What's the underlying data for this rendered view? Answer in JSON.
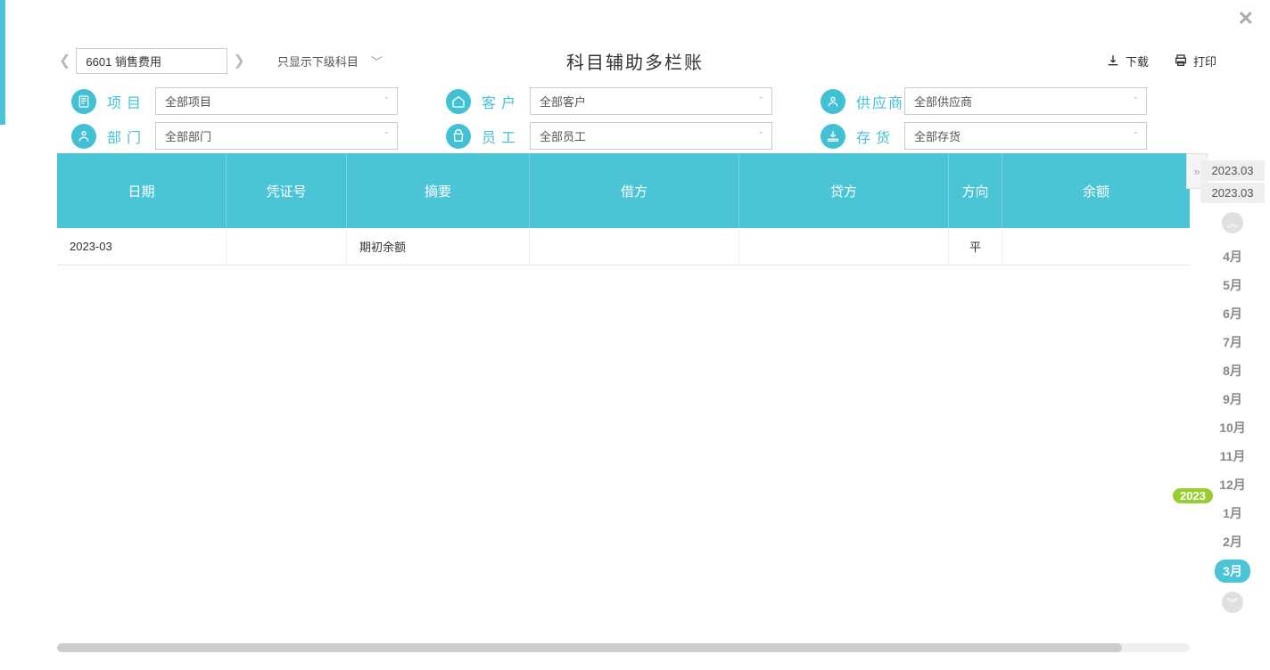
{
  "close_label": "✕",
  "subject": {
    "code_name": "6601  销售费用"
  },
  "display_mode": "只显示下级科目",
  "page_title": "科目辅助多栏账",
  "actions": {
    "download": "下载",
    "print": "打印"
  },
  "filters": {
    "project": {
      "label": "项目",
      "value": "全部项目"
    },
    "customer": {
      "label": "客户",
      "value": "全部客户"
    },
    "supplier": {
      "label": "供应商",
      "value": "全部供应商"
    },
    "department": {
      "label": "部门",
      "value": "全部部门"
    },
    "employee": {
      "label": "员工",
      "value": "全部员工"
    },
    "inventory": {
      "label": "存货",
      "value": "全部存货"
    }
  },
  "columns": {
    "date": "日期",
    "voucher": "凭证号",
    "summary": "摘要",
    "debit": "借方",
    "credit": "贷方",
    "direction": "方向",
    "balance": "余额"
  },
  "rows": [
    {
      "date": "2023-03",
      "voucher": "",
      "summary": "期初余额",
      "debit": "",
      "credit": "",
      "direction": "平",
      "balance": ""
    }
  ],
  "datepanel": {
    "from": "2023.03",
    "to": "2023.03",
    "year_badge": "2023",
    "months": [
      "4月",
      "5月",
      "6月",
      "7月",
      "8月",
      "9月",
      "10月",
      "11月",
      "12月",
      "1月",
      "2月",
      "3月"
    ],
    "active_month": "3月"
  },
  "colors": {
    "teal": "#4bc4d6",
    "teal_text": "#42c0d4",
    "year_badge": "#9acd32",
    "border": "#cccccc",
    "header_text": "#ffffff"
  }
}
